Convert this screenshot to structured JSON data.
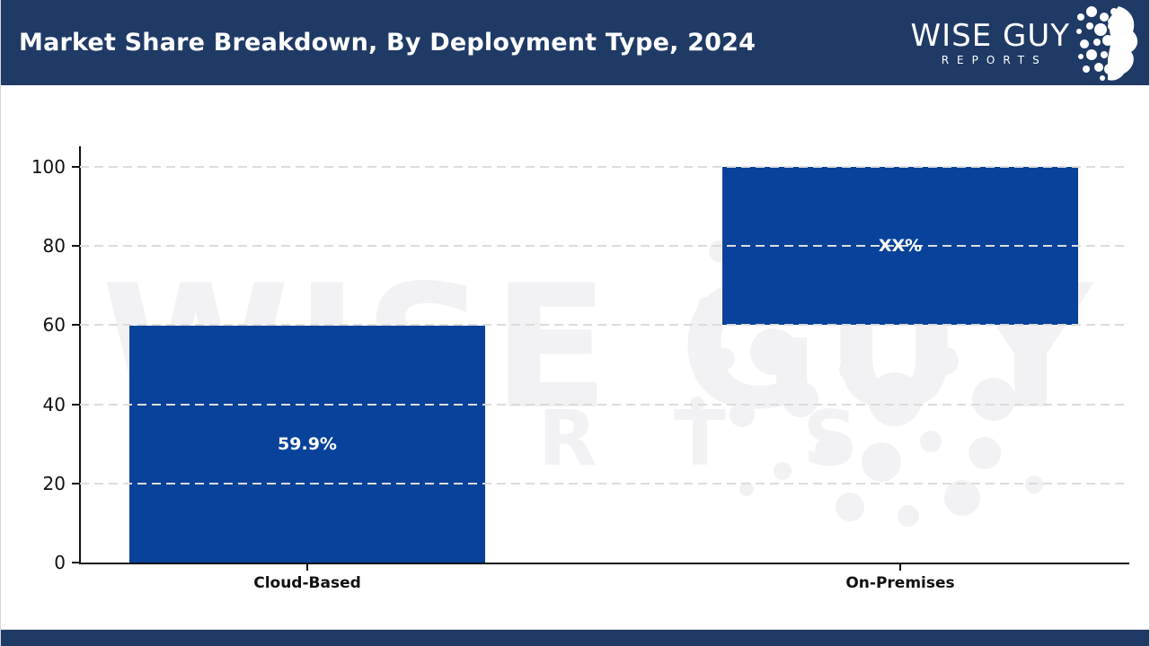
{
  "header": {
    "title": "Market Share Breakdown, By Deployment Type, 2024",
    "logo": {
      "line1": "WISE GUY",
      "line2": "REPORTS"
    }
  },
  "watermark": {
    "line1": "WISE GUY",
    "line2": "R T S"
  },
  "colors": {
    "header_bg": "#203a66",
    "footer_bg": "#203a66",
    "bar": "#08429a",
    "gridline": "#dcdcdc",
    "axis": "#111111",
    "watermark": "#f2f2f4",
    "bar_label_text": "#ffffff"
  },
  "chart_data": {
    "type": "bar",
    "subtype": "floating-waterfall",
    "title": "Market Share Breakdown, By Deployment Type, 2024",
    "categories": [
      "Cloud-Based",
      "On-Premises"
    ],
    "bars": [
      {
        "category": "Cloud-Based",
        "start": 0,
        "end": 59.9,
        "label": "59.9%"
      },
      {
        "category": "On-Premises",
        "start": 60,
        "end": 100,
        "label": "XX%"
      }
    ],
    "ylim": [
      0,
      100
    ],
    "yticks": [
      0,
      20,
      40,
      60,
      80,
      100
    ],
    "xlabel": "",
    "ylabel": "",
    "grid": "dashed horizontal, drawn over bars",
    "legend": "none"
  }
}
